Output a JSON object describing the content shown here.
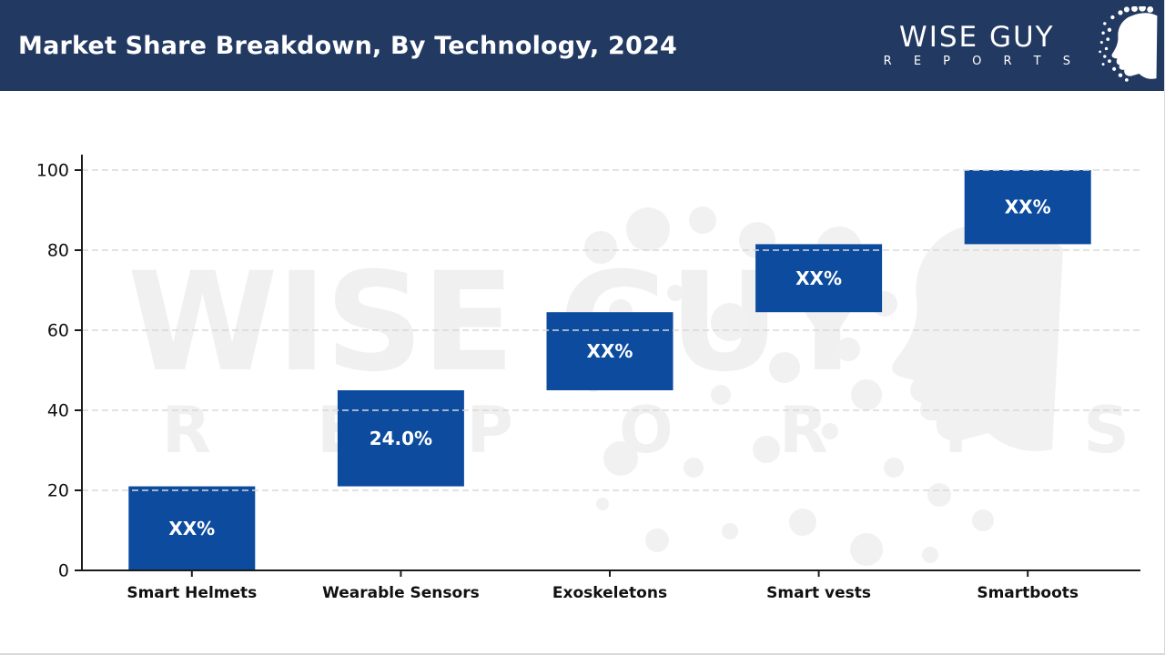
{
  "header": {
    "title": "Market Share Breakdown, By Technology, 2024",
    "logo_line1": "WISE GUY",
    "logo_line2": "R E P O R T S",
    "bg_color": "#223962"
  },
  "watermark": {
    "line1": "WISE GUY",
    "line2": "R E P O R T S"
  },
  "chart_data": {
    "type": "bar",
    "subtype": "floating-waterfall-bars",
    "title": "Market Share Breakdown, By Technology, 2024",
    "categories": [
      "Smart Helmets",
      "Wearable Sensors",
      "Exoskeletons",
      "Smart vests",
      "Smartboots"
    ],
    "series": [
      {
        "name": "Market share (%)",
        "segments": [
          {
            "start": 0,
            "end": 21,
            "label": "XX%"
          },
          {
            "start": 21,
            "end": 45,
            "label": "24.0%"
          },
          {
            "start": 45,
            "end": 64.5,
            "label": "XX%"
          },
          {
            "start": 64.5,
            "end": 81.5,
            "label": "XX%"
          },
          {
            "start": 81.5,
            "end": 100,
            "label": "XX%"
          }
        ]
      }
    ],
    "xlabel": "",
    "ylabel": "",
    "yticks": [
      0,
      20,
      40,
      60,
      80,
      100
    ],
    "ylim": [
      0,
      104
    ],
    "grid": "horizontal-dashed",
    "legend": "none",
    "bar_color": "#0C4B9E",
    "bar_label_color": "#FFFFFF",
    "axis_color": "#1a1a1a",
    "grid_color": "#d8d8d8",
    "tick_label_color": "#111111"
  }
}
